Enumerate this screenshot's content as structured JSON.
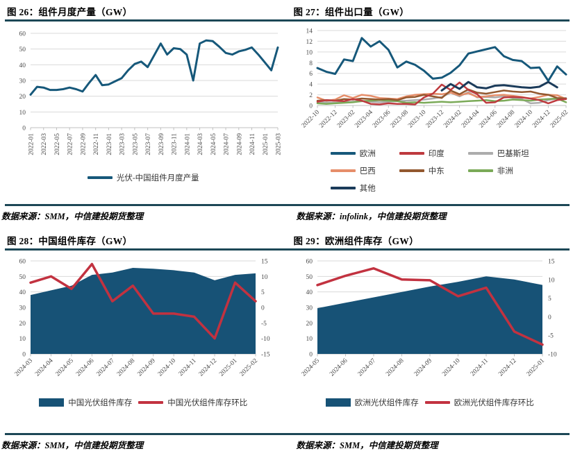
{
  "panels": {
    "p26": {
      "title": "图 26：组件月度产量（GW）",
      "source": "数据来源：SMM，中信建投期货整理"
    },
    "p27": {
      "title": "图 27：组件出口量（GW）",
      "source": "数据来源：infolink，中信建投期货整理"
    },
    "p28": {
      "title": "图 28：中国组件库存（GW）",
      "source": "数据来源：SMM，中信建投期货整理"
    },
    "p29": {
      "title": "图 29：欧洲组件库存（GW）",
      "source": "数据来源：SMM，中信建投期货整理"
    }
  },
  "colors": {
    "divider": "#1C4756",
    "grid": "#DADADA",
    "axis": "#BFBFBF",
    "tick_text": "#4A4A4A",
    "teal": "#16587A",
    "navy": "#1B3B5A",
    "red": "#BE3A3E",
    "crimson": "#C23240",
    "orange": "#E68E6A",
    "brown": "#93582F",
    "gray": "#ACACAC",
    "green": "#7BAA58",
    "area_blue": "#175276"
  },
  "chart_data": [
    {
      "id": "c26",
      "type": "line",
      "title": "组件月度产量（GW）",
      "xlabel": "",
      "ylabel": "",
      "label_every": 2,
      "label_rotation": -90,
      "grid": true,
      "legend_position": "bottom",
      "y_left": {
        "min": 0,
        "max": 60,
        "ticks": [
          0,
          10,
          20,
          30,
          40,
          50,
          60
        ]
      },
      "categories": [
        "2022-01",
        "2022-02",
        "2022-03",
        "2022-04",
        "2022-05",
        "2022-06",
        "2022-07",
        "2022-08",
        "2022-09",
        "2022-10",
        "2022-11",
        "2022-12",
        "2023-01",
        "2023-02",
        "2023-03",
        "2023-04",
        "2023-05",
        "2023-06",
        "2023-07",
        "2023-08",
        "2023-09",
        "2023-10",
        "2023-11",
        "2023-12",
        "2024-01",
        "2024-02",
        "2024-03",
        "2024-04",
        "2024-05",
        "2024-06",
        "2024-07",
        "2024-08",
        "2024-09",
        "2024-10",
        "2024-11",
        "2024-12",
        "2025-01",
        "2025-02",
        "2025-03"
      ],
      "draw_order": [
        0
      ],
      "series": [
        {
          "name": "光伏-中国组件月度产量",
          "color": "teal",
          "width": 3,
          "swatch": "line",
          "axis": "left",
          "values": [
            21,
            26,
            25.5,
            24,
            24,
            24.5,
            25.5,
            24.5,
            23,
            28.5,
            33.5,
            27,
            27.5,
            29.5,
            31.5,
            36.5,
            40.5,
            42,
            38.5,
            46,
            53.5,
            46.5,
            50.5,
            50,
            46.5,
            30,
            53.5,
            55.5,
            55,
            51.5,
            47.5,
            46.5,
            48.5,
            49.5,
            51,
            46.5,
            41.5,
            36.5,
            51
          ]
        }
      ]
    },
    {
      "id": "c27",
      "type": "line",
      "title": "组件出口量（GW）",
      "xlabel": "",
      "ylabel": "",
      "label_every": 2,
      "label_rotation": -45,
      "grid": true,
      "legend_position": "bottom",
      "y_left": {
        "min": 0,
        "max": 14,
        "ticks": [
          0,
          2,
          4,
          6,
          8,
          10,
          12,
          14
        ]
      },
      "categories": [
        "2022-10",
        "2022-11",
        "2022-12",
        "2023-01",
        "2023-02",
        "2023-03",
        "2023-04",
        "2023-05",
        "2023-06",
        "2023-07",
        "2023-08",
        "2023-09",
        "2023-10",
        "2023-11",
        "2023-12",
        "2024-01",
        "2024-02",
        "2024-03",
        "2024-04",
        "2024-05",
        "2024-06",
        "2024-07",
        "2024-08",
        "2024-09",
        "2024-10",
        "2024-11",
        "2024-12",
        "2025-01",
        "2025-02"
      ],
      "draw_order": [
        2,
        5,
        3,
        4,
        1,
        0,
        6
      ],
      "series": [
        {
          "name": "欧洲",
          "color": "teal",
          "width": 3,
          "swatch": "line",
          "axis": "left",
          "values": [
            7,
            6.3,
            5.9,
            8.6,
            8.3,
            12.6,
            11,
            12,
            10.4,
            7.1,
            8.2,
            7.6,
            6.5,
            5,
            5.2,
            6.1,
            7.5,
            9.7,
            10.1,
            10.5,
            10.9,
            9.2,
            8.5,
            8.3,
            7,
            7.1,
            4.6,
            7.3,
            5.8
          ]
        },
        {
          "name": "印度",
          "color": "red",
          "width": 2.5,
          "swatch": "line",
          "axis": "left",
          "values": [
            0.7,
            1,
            0.9,
            0.8,
            1.2,
            0.9,
            0.3,
            0.2,
            0.4,
            0.3,
            0.3,
            0.2,
            1.5,
            2.2,
            3.9,
            2.9,
            4.3,
            2.9,
            2.1,
            0.5,
            0.6,
            1.5,
            1.6,
            1.5,
            1.3,
            1,
            0.4,
            1,
            1.2
          ]
        },
        {
          "name": "巴基斯坦",
          "color": "gray",
          "width": 2.5,
          "swatch": "line",
          "axis": "left",
          "values": [
            0.5,
            0.6,
            0.5,
            0.6,
            0.7,
            0.8,
            0.7,
            0.6,
            0.7,
            0.8,
            0.9,
            1,
            1.1,
            1.3,
            1.6,
            2.4,
            1.7,
            2.5,
            1.5,
            1.6,
            1.5,
            1.7,
            1.4,
            1.2,
            0.4,
            0.5,
            1,
            1.3,
            1.4
          ]
        },
        {
          "name": "巴西",
          "color": "orange",
          "width": 2.5,
          "swatch": "line",
          "axis": "left",
          "values": [
            1.5,
            0.9,
            1.1,
            1.9,
            1.4,
            2,
            1.8,
            1.4,
            1.3,
            1.2,
            1.7,
            2,
            2.1,
            2.2,
            2.1,
            2.4,
            1.9,
            2.3,
            1.6,
            1.7,
            1.9,
            2,
            1.8,
            1.6,
            1.3,
            1.6,
            2,
            1.9,
            1.2
          ]
        },
        {
          "name": "中东",
          "color": "brown",
          "width": 2.5,
          "swatch": "line",
          "axis": "left",
          "values": [
            0.9,
            1,
            0.9,
            1.2,
            1.1,
            1.3,
            1.2,
            1.1,
            1.2,
            1,
            1.5,
            1.6,
            2,
            1.7,
            1.4,
            2.8,
            2.1,
            3,
            2.4,
            2.2,
            2.5,
            2.8,
            2.6,
            2.5,
            2.6,
            2.2,
            2,
            1.4,
            1.3
          ]
        },
        {
          "name": "非洲",
          "color": "green",
          "width": 2.5,
          "swatch": "line",
          "axis": "left",
          "values": [
            0.4,
            0.3,
            0.4,
            0.5,
            0.6,
            0.8,
            0.9,
            1,
            0.9,
            0.8,
            0.5,
            0.6,
            0.5,
            0.6,
            0.7,
            0.6,
            0.7,
            0.8,
            0.9,
            1,
            0.8,
            0.9,
            1.1,
            1,
            0.9,
            1.1,
            1.2,
            1.3,
            0.6
          ]
        },
        {
          "name": "其他",
          "color": "navy",
          "width": 3,
          "swatch": "line",
          "axis": "left",
          "values": [
            null,
            null,
            null,
            null,
            null,
            null,
            null,
            null,
            null,
            null,
            null,
            null,
            null,
            null,
            2.8,
            4,
            3.1,
            4.4,
            3.4,
            3.2,
            3.7,
            3.8,
            3.6,
            3.4,
            3.3,
            3.5,
            4.4,
            3.4,
            null
          ]
        }
      ]
    },
    {
      "id": "c28",
      "type": "area",
      "title": "中国组件库存（GW）",
      "xlabel": "",
      "ylabel": "",
      "label_every": 1,
      "label_rotation": -45,
      "grid": true,
      "legend_position": "bottom",
      "y_left": {
        "min": 0,
        "max": 60,
        "ticks": [
          0,
          10,
          20,
          30,
          40,
          50,
          60
        ]
      },
      "y_right": {
        "min": -15,
        "max": 15,
        "ticks": [
          -15,
          -10,
          -5,
          0,
          5,
          10,
          15
        ]
      },
      "categories": [
        "2024-03",
        "2024-04",
        "2024-05",
        "2024-06",
        "2024-07",
        "2024-08",
        "2024-09",
        "2024-10",
        "2024-11",
        "2024-12",
        "2025-01",
        "2025-02"
      ],
      "draw_order": [
        0,
        1
      ],
      "series": [
        {
          "name": "中国光伏组件库存",
          "color": "area_blue",
          "type": "area",
          "swatch": "rect",
          "axis": "left",
          "values": [
            38,
            41,
            44,
            51,
            52.5,
            55.5,
            55,
            54,
            52.5,
            47.5,
            51,
            52
          ]
        },
        {
          "name": "中国光伏组件库存环比",
          "color": "crimson",
          "width": 3.5,
          "swatch": "line",
          "axis": "right",
          "values": [
            8,
            10,
            6,
            14,
            2,
            7,
            -2,
            -2,
            -3,
            -10,
            8,
            2
          ]
        }
      ]
    },
    {
      "id": "c29",
      "type": "area",
      "title": "欧洲组件库存（GW）",
      "xlabel": "",
      "ylabel": "",
      "label_every": 1,
      "label_rotation": -45,
      "grid": true,
      "legend_position": "bottom",
      "y_left": {
        "min": 0,
        "max": 60,
        "ticks": [
          0,
          10,
          20,
          30,
          40,
          50,
          60
        ]
      },
      "y_right": {
        "min": -10,
        "max": 15,
        "ticks": [
          -10,
          -5,
          0,
          5,
          10,
          15
        ]
      },
      "categories": [
        "2024-05",
        "2024-06",
        "2024-07",
        "2024-08",
        "2024-09",
        "2024-10",
        "2024-11",
        "2024-12",
        "2025-01"
      ],
      "draw_order": [
        0,
        1
      ],
      "series": [
        {
          "name": "欧洲光伏组件库存",
          "color": "area_blue",
          "type": "area",
          "swatch": "rect",
          "axis": "left",
          "values": [
            29.5,
            33,
            36.5,
            40,
            43.5,
            46.5,
            50,
            48,
            44.5
          ]
        },
        {
          "name": "欧洲光伏组件库存环比",
          "color": "crimson",
          "width": 3.5,
          "swatch": "line",
          "axis": "right",
          "values": [
            8.5,
            11,
            13,
            10,
            9.8,
            5.5,
            7.8,
            -4,
            -7.5
          ]
        }
      ]
    }
  ]
}
